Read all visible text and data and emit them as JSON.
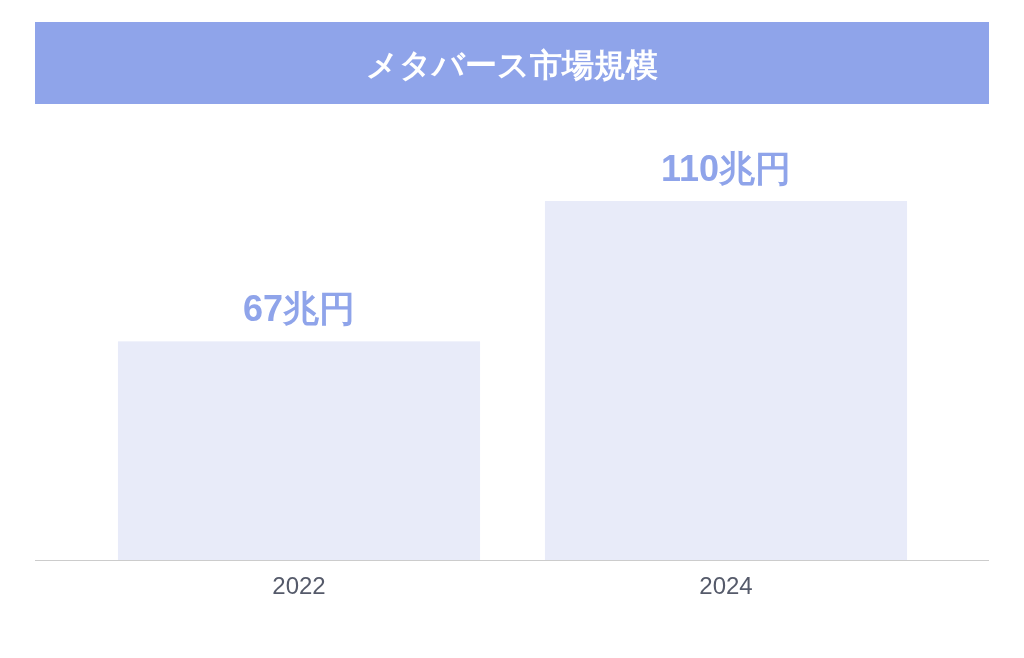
{
  "chart_data": {
    "type": "bar",
    "title": "メタバース市場規模",
    "categories": [
      "2022",
      "2024"
    ],
    "values": [
      67,
      110
    ],
    "value_labels": [
      "67兆円",
      "110兆円"
    ],
    "color": "#e8ebf9"
  }
}
